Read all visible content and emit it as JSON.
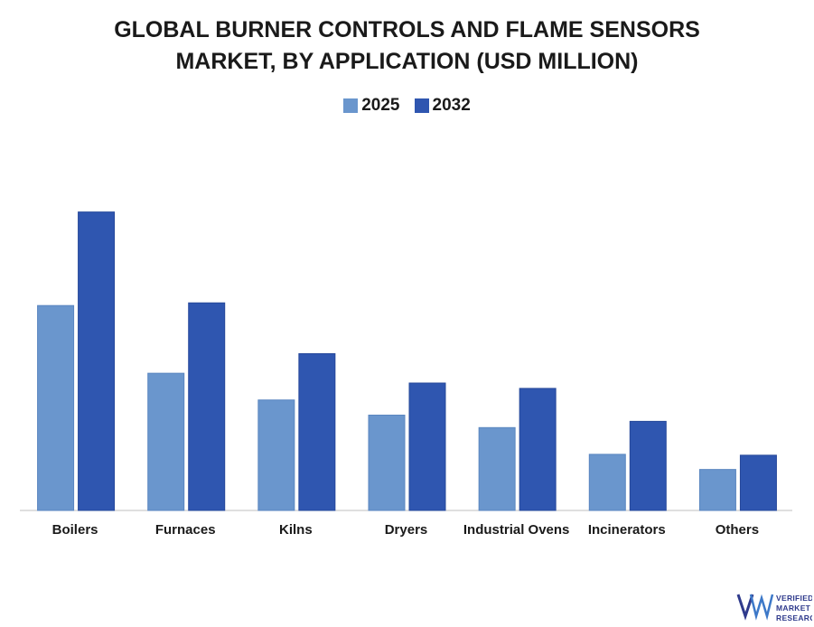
{
  "chart_data": {
    "type": "bar",
    "title_line1": "GLOBAL BURNER CONTROLS AND FLAME SENSORS",
    "title_line2": "MARKET, BY APPLICATION (USD MILLION)",
    "categories": [
      "Boilers",
      "Furnaces",
      "Kilns",
      "Dryers",
      "Industrial Ovens",
      "Incinerators",
      "Others"
    ],
    "series": [
      {
        "name": "2025",
        "color": "#6a96cd",
        "values": [
          230,
          154,
          124,
          107,
          93,
          63,
          46
        ]
      },
      {
        "name": "2032",
        "color": "#2f56b0",
        "values": [
          335,
          233,
          176,
          143,
          137,
          100,
          62
        ]
      }
    ],
    "xlabel": "",
    "ylabel": "",
    "ylim": [
      0,
      360
    ],
    "grid": false,
    "legend_position": "top-center"
  },
  "logo": {
    "line1": "VERIFIED",
    "line2": "MARKET",
    "line3": "RESEARCH"
  }
}
